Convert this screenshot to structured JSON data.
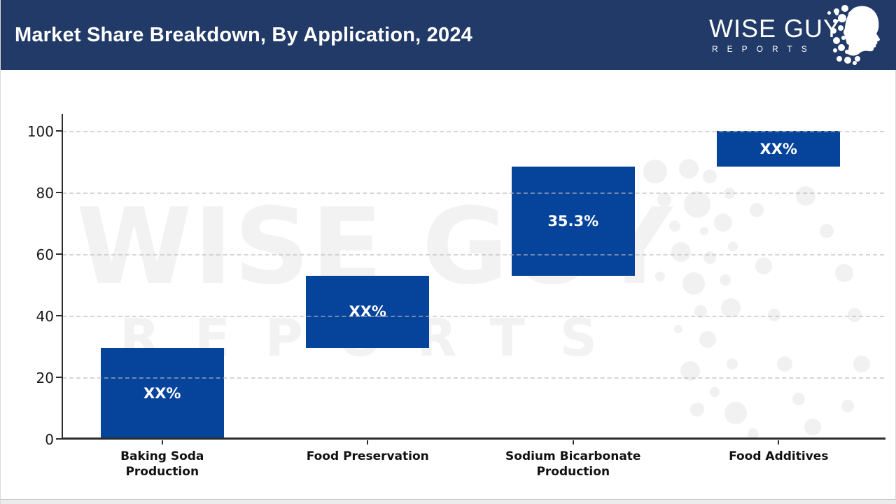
{
  "header": {
    "title": "Market Share Breakdown, By Application, 2024",
    "background_color": "#213a67",
    "logo": {
      "brand_line1": "WISE GUY",
      "brand_line2": "REPORTS"
    }
  },
  "watermark": {
    "line1": "WISE GUY",
    "line2": "REPORTS"
  },
  "chart_data": {
    "type": "bar",
    "subtype": "waterfall-breakdown",
    "title": "Market Share Breakdown, By Application, 2024",
    "xlabel": "",
    "ylabel": "",
    "ylim": [
      0,
      100
    ],
    "yticks": [
      0,
      20,
      40,
      60,
      80,
      100
    ],
    "grid": "horizontal-dashed",
    "legend": "none",
    "bar_color": "#06439b",
    "bar_label_color": "#ffffff",
    "categories": [
      "Baking Soda Production",
      "Food Preservation",
      "Sodium Bicarbonate Production",
      "Food Additives"
    ],
    "category_tick_labels": [
      "Baking Soda\nProduction",
      "Food Preservation",
      "Sodium Bicarbonate\nProduction",
      "Food Additives"
    ],
    "segments": [
      {
        "category": "Baking Soda Production",
        "start": 0,
        "end": 29.5,
        "label": "XX%"
      },
      {
        "category": "Food Preservation",
        "start": 29.5,
        "end": 53.0,
        "label": "XX%"
      },
      {
        "category": "Sodium Bicarbonate Production",
        "start": 53.0,
        "end": 88.3,
        "label": "35.3%",
        "value": 35.3
      },
      {
        "category": "Food Additives",
        "start": 88.3,
        "end": 100,
        "label": "XX%"
      }
    ]
  }
}
